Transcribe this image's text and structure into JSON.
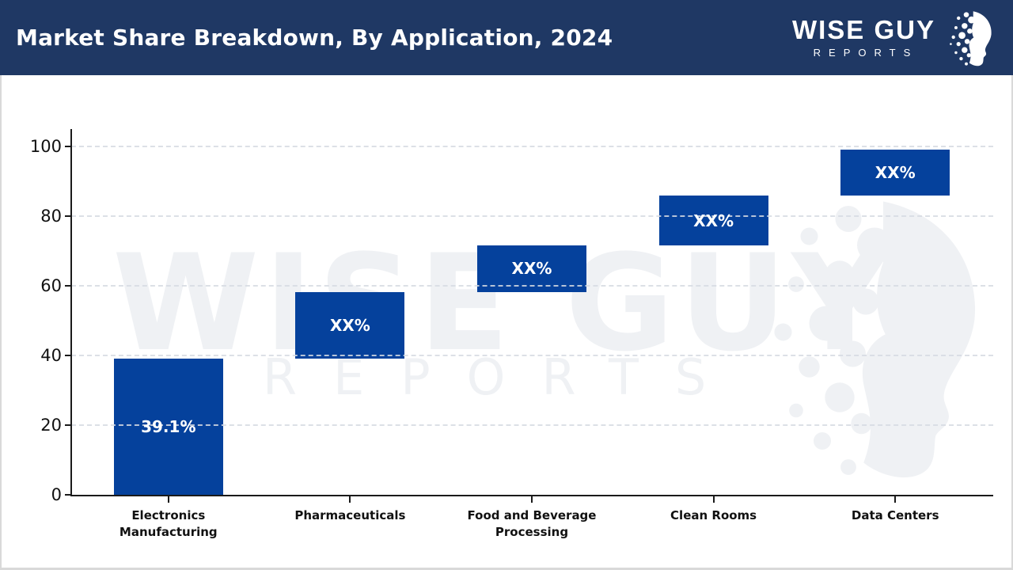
{
  "header": {
    "title": "Market Share Breakdown, By Application, 2024",
    "logo": {
      "line1": "WISE GUY",
      "line2": "REPORTS"
    }
  },
  "watermark": {
    "line1": "WISE GUY",
    "line2": "REPORTS"
  },
  "chart_data": {
    "type": "bar",
    "subtype": "waterfall",
    "title": "Market Share Breakdown, By Application, 2024",
    "categories": [
      "Electronics Manufacturing",
      "Pharmaceuticals",
      "Food and Beverage Processing",
      "Clean Rooms",
      "Data Centers"
    ],
    "category_lines": [
      [
        "Electronics",
        "Manufacturing"
      ],
      [
        "Pharmaceuticals"
      ],
      [
        "Food and Beverage",
        "Processing"
      ],
      [
        "Clean Rooms"
      ],
      [
        "Data Centers"
      ]
    ],
    "segments": [
      {
        "category": "Electronics Manufacturing",
        "start": 0,
        "end": 39.1,
        "label": "39.1%"
      },
      {
        "category": "Pharmaceuticals",
        "start": 39.1,
        "end": 58.2,
        "label": "XX%"
      },
      {
        "category": "Food and Beverage Processing",
        "start": 58.2,
        "end": 71.6,
        "label": "XX%"
      },
      {
        "category": "Clean Rooms",
        "start": 71.6,
        "end": 85.8,
        "label": "XX%"
      },
      {
        "category": "Data Centers",
        "start": 85.8,
        "end": 99.1,
        "label": "XX%"
      }
    ],
    "ylim": [
      0,
      100
    ],
    "yticks": [
      0,
      20,
      40,
      60,
      80,
      100
    ],
    "grid": "horizontal-dashed",
    "legend": "none",
    "bar_color": "#05419c",
    "value_label_color": "#ffffff"
  },
  "colors": {
    "header_bg": "#1f3864",
    "bar": "#05419c",
    "axis": "#1a1a1a",
    "grid": "#dce1e8",
    "watermark": "#eff1f4",
    "page_border": "#d9d9d9"
  }
}
